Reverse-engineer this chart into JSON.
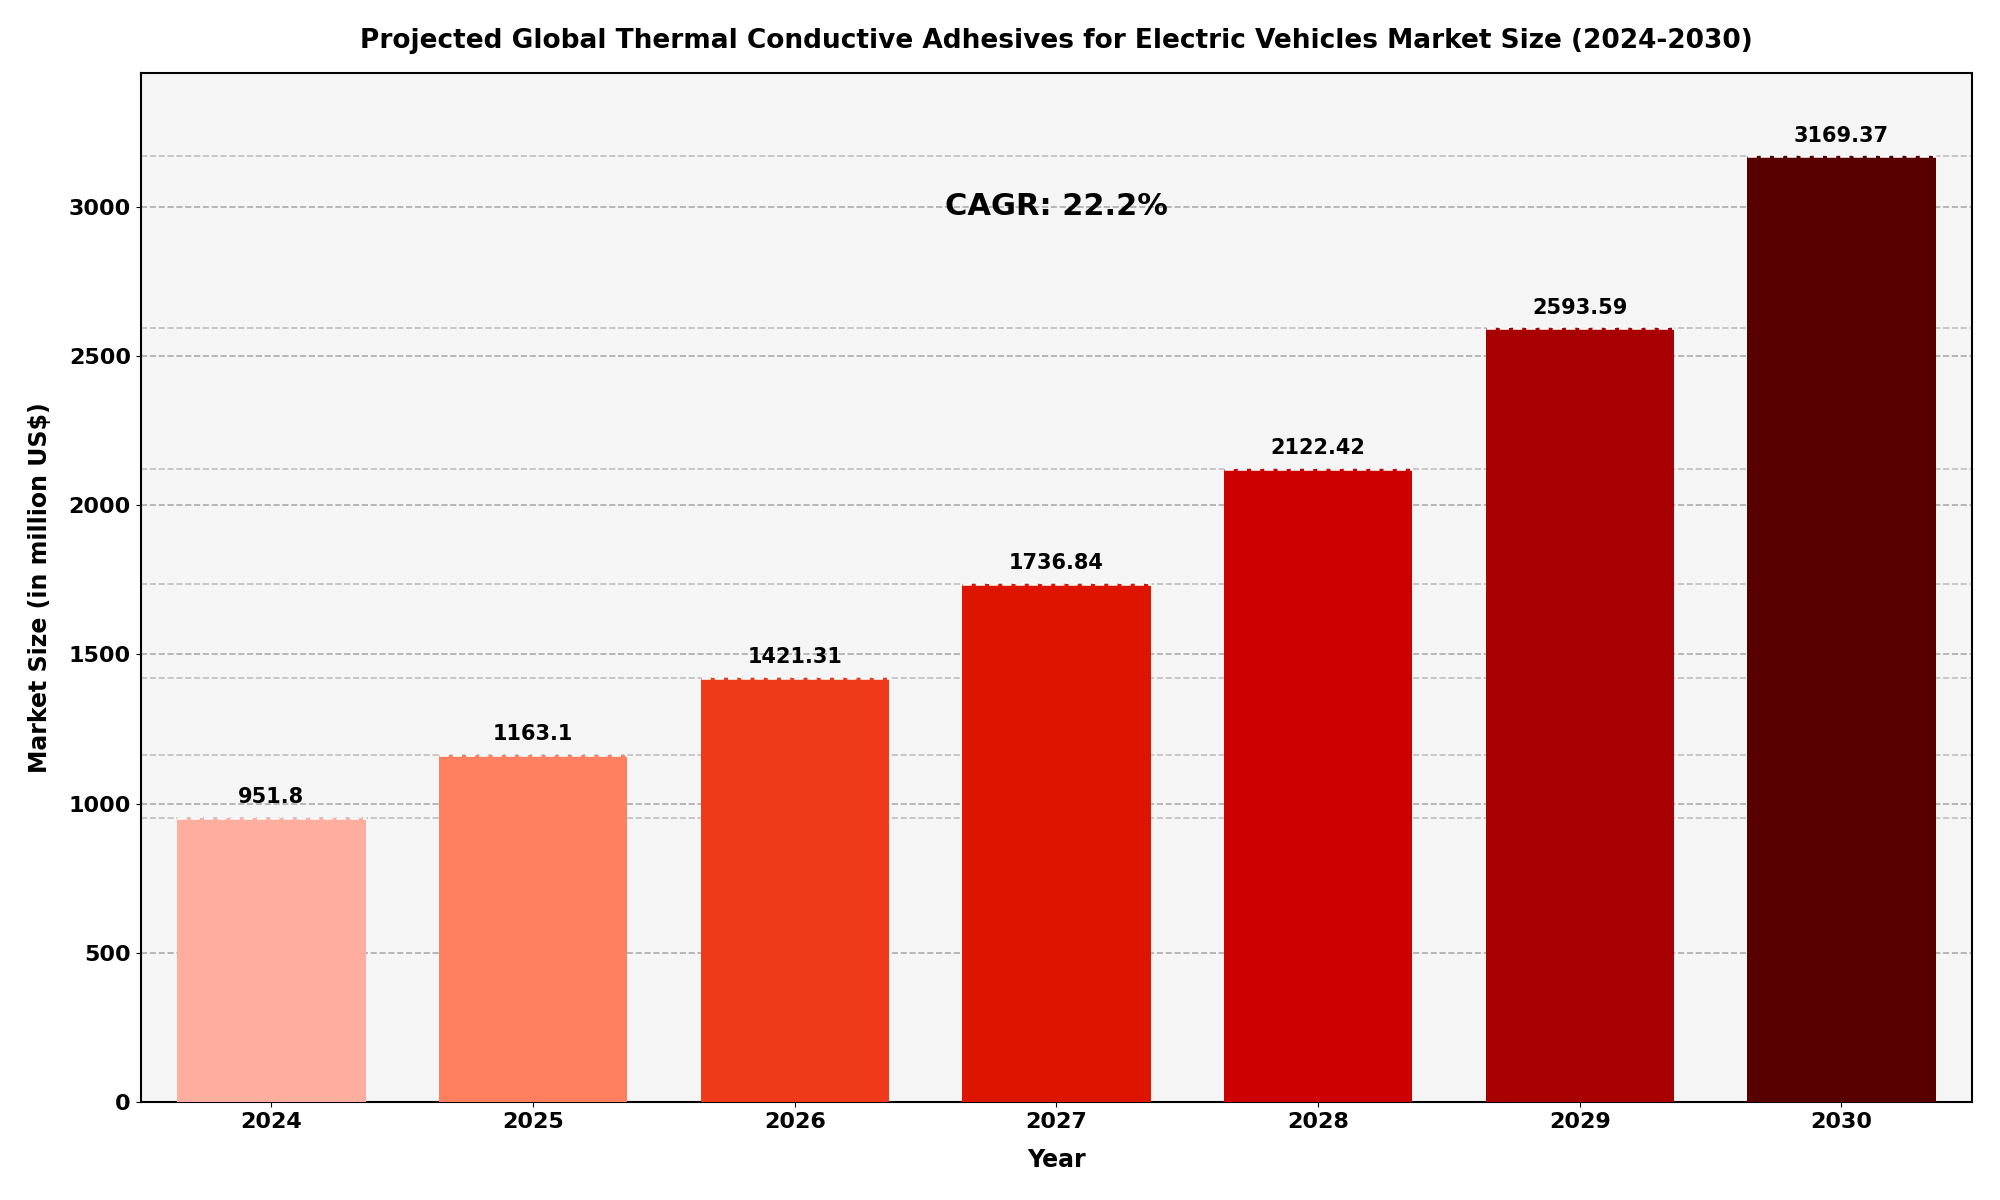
{
  "title": "Projected Global Thermal Conductive Adhesives for Electric Vehicles Market Size (2024-2030)",
  "xlabel": "Year",
  "ylabel": "Market Size (in million US$)",
  "years": [
    "2024",
    "2025",
    "2026",
    "2027",
    "2028",
    "2029",
    "2030"
  ],
  "values": [
    951.8,
    1163.1,
    1421.31,
    1736.84,
    2122.42,
    2593.59,
    3169.37
  ],
  "bar_colors": [
    "#FFAD9E",
    "#FF8060",
    "#EE3A18",
    "#DD1500",
    "#CC0000",
    "#A80000",
    "#580000"
  ],
  "cagr_text": "CAGR: 22.2%",
  "ylim": [
    0,
    3450
  ],
  "yticks": [
    0,
    500,
    1000,
    1500,
    2000,
    2500,
    3000
  ],
  "title_fontsize": 19,
  "label_fontsize": 17,
  "tick_fontsize": 16,
  "value_fontsize": 15,
  "cagr_fontsize": 22,
  "background_color": "#ffffff",
  "plot_background": "#f5f5f5",
  "grid_color": "#999999",
  "bar_width": 0.72
}
